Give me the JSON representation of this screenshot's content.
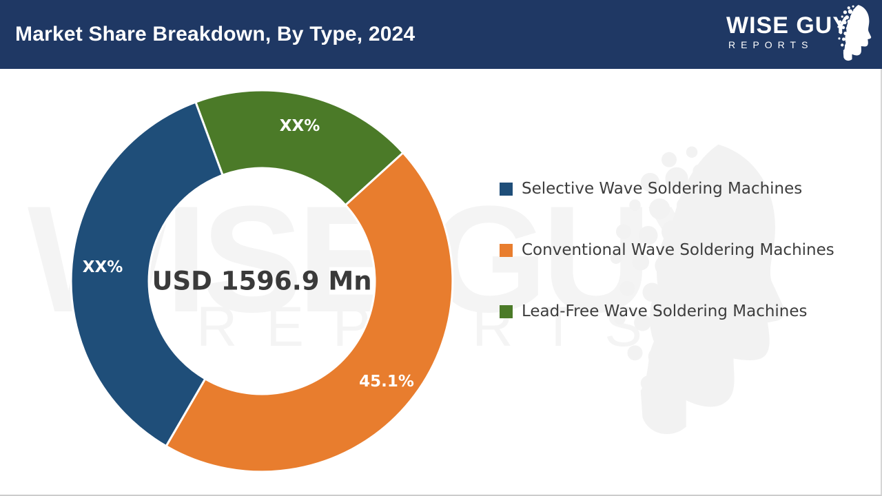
{
  "header": {
    "title": "Market Share Breakdown, By Type, 2024",
    "logo": {
      "wordmark": "WISE GUY",
      "subtext": "REPORTS"
    }
  },
  "watermark": {
    "wordmark": "WISE GUY",
    "subtext": "REPORTS"
  },
  "colors": {
    "header_bg": "#1f3864",
    "watermark": "#f4f4f4",
    "slice_label": "#ffffff",
    "center_text": "#3a3a3a",
    "legend_text": "#3d3d3d"
  },
  "chart_data": {
    "type": "pie",
    "subtype": "donut",
    "title": "Market Share Breakdown, By Type, 2024",
    "center_label": "USD 1596.9 Mn",
    "legend_position": "right",
    "start_angle_deg": -20.3,
    "render_order": [
      2,
      1,
      0
    ],
    "slices": [
      {
        "label": "Selective Wave Soldering Machines",
        "display_value": "XX%",
        "value_pct_est": 36.0,
        "color": "#1F4E79"
      },
      {
        "label": "Conventional Wave Soldering Machines",
        "display_value": "45.1%",
        "value_pct_est": 45.1,
        "color": "#E87D2E"
      },
      {
        "label": "Lead-Free Wave Soldering Machines",
        "display_value": "XX%",
        "value_pct_est": 18.9,
        "color": "#4B7A28"
      }
    ]
  }
}
